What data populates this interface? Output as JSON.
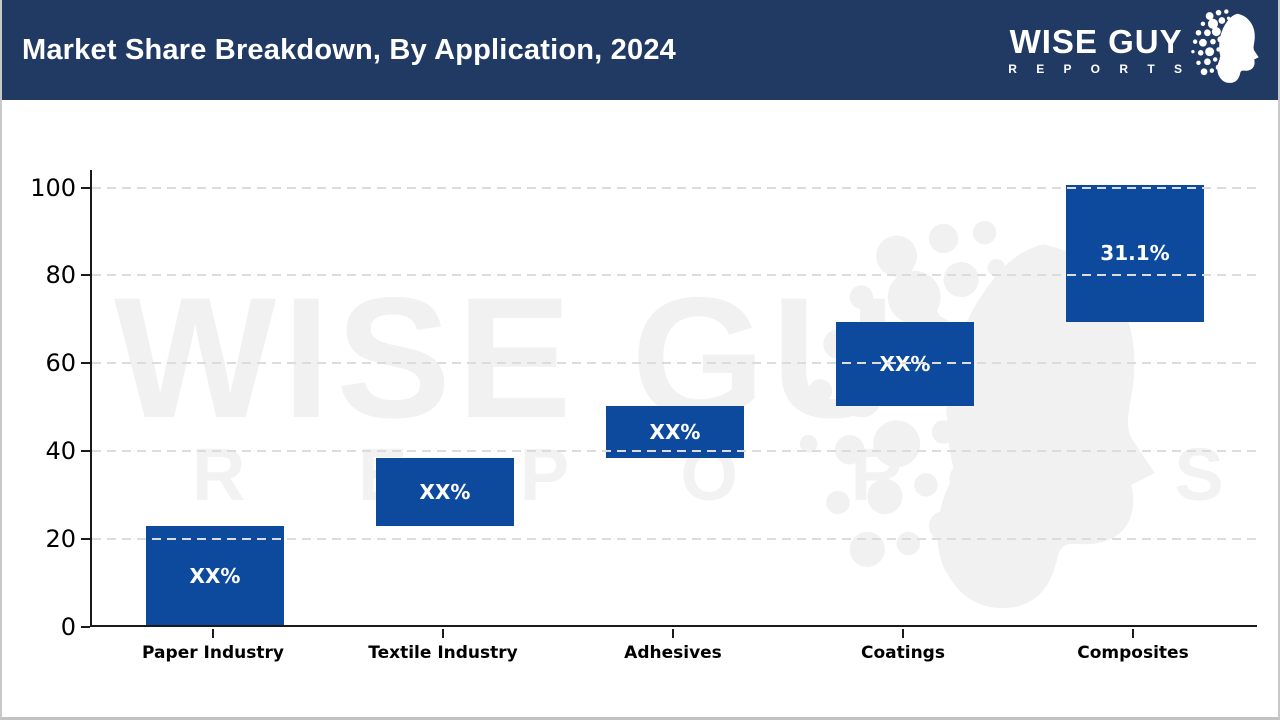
{
  "header": {
    "title": "Market Share Breakdown, By Application, 2024",
    "logo": {
      "line1": "WISE GUY",
      "line2": "R E P O R T S"
    }
  },
  "watermark": {
    "line1": "WISE GUY",
    "line2": "REPORTS"
  },
  "chart_data": {
    "type": "bar",
    "subtype": "waterfall",
    "title": "Market Share Breakdown, By Application, 2024",
    "xlabel": "",
    "ylabel": "",
    "categories": [
      "Paper Industry",
      "Textile Industry",
      "Adhesives",
      "Coatings",
      "Composites"
    ],
    "segments": [
      {
        "start": 0,
        "end": 22.5,
        "label": "XX%"
      },
      {
        "start": 22.5,
        "end": 38.1,
        "label": "XX%"
      },
      {
        "start": 38.1,
        "end": 49.8,
        "label": "XX%"
      },
      {
        "start": 49.8,
        "end": 69.0,
        "label": "XX%"
      },
      {
        "start": 69.0,
        "end": 100.1,
        "label": "31.1%"
      }
    ],
    "yticks": [
      0,
      20,
      40,
      60,
      80,
      100
    ],
    "ylim": [
      0,
      104
    ],
    "grid": "horizontal-dashed",
    "legend": "none",
    "bar_color": "#0d4a9e",
    "bar_label_color": "#ffffff"
  },
  "colors": {
    "header_bg": "#213a64",
    "bar": "#0d4a9e",
    "grid": "#dcdcdc",
    "axis": "#1a1a1a",
    "watermark": "#f1f1f1",
    "border": "#c9c9c9"
  }
}
